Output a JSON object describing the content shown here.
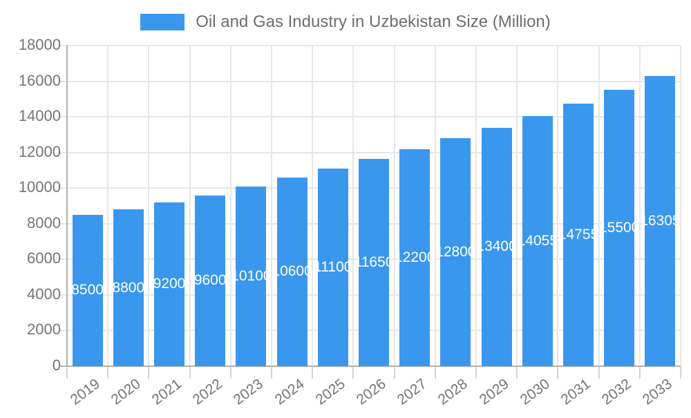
{
  "legend": {
    "label": "Oil and Gas Industry in Uzbekistan Size (Million)"
  },
  "chart_data": {
    "type": "bar",
    "title": "Oil and Gas Industry in Uzbekistan Size (Million)",
    "categories": [
      "2019",
      "2020",
      "2021",
      "2022",
      "2023",
      "2024",
      "2025",
      "2026",
      "2027",
      "2028",
      "2029",
      "2030",
      "2031",
      "2032",
      "2033"
    ],
    "values": [
      8500,
      8800,
      9200,
      9600,
      10100,
      10600,
      11100,
      11650,
      12200,
      12800,
      13400,
      14055,
      14755,
      15500,
      16305
    ],
    "xlabel": "",
    "ylabel": "",
    "ylim": [
      0,
      18000
    ],
    "yticks": [
      0,
      2000,
      4000,
      6000,
      8000,
      10000,
      12000,
      14000,
      16000,
      18000
    ],
    "grid": true,
    "legend_position": "top",
    "bar_labels_inside": true,
    "colors": {
      "bar": "#3a97ee",
      "bar_value_label": "#ffffff",
      "legend_text": "#6e6e6e",
      "axis_tick_text": "#757575",
      "gridline": "#e6e6e6",
      "axis_line": "#b0b0b0",
      "minor_tick": "#d4d4d4"
    }
  }
}
